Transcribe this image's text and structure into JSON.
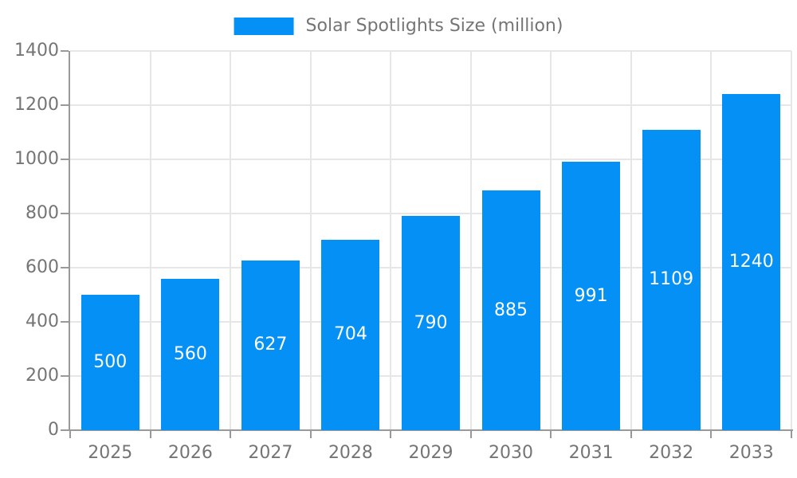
{
  "legend": {
    "items": [
      {
        "label": "Solar Spotlights Size (million)",
        "color": "#0490f5"
      }
    ]
  },
  "chart_data": {
    "type": "bar",
    "title": "Solar Spotlights Size (million)",
    "series_name": "Solar Spotlights Size (million)",
    "categories": [
      "2025",
      "2026",
      "2027",
      "2028",
      "2029",
      "2030",
      "2031",
      "2032",
      "2033"
    ],
    "values": [
      500,
      560,
      627,
      704,
      790,
      885,
      991,
      1109,
      1240
    ],
    "xlabel": "",
    "ylabel": "",
    "ylim": [
      0,
      1400
    ],
    "yticks": [
      0,
      200,
      400,
      600,
      800,
      1000,
      1200,
      1400
    ],
    "grid": true,
    "legend_position": "top-center",
    "value_label_position": "inside-center"
  },
  "colors": {
    "bar": "#0490f5",
    "axis": "#999999",
    "grid": "#e6e6e6",
    "tick_text": "#757575",
    "legend_text": "#757575",
    "value_label": "#ffffff",
    "background": "#ffffff"
  }
}
